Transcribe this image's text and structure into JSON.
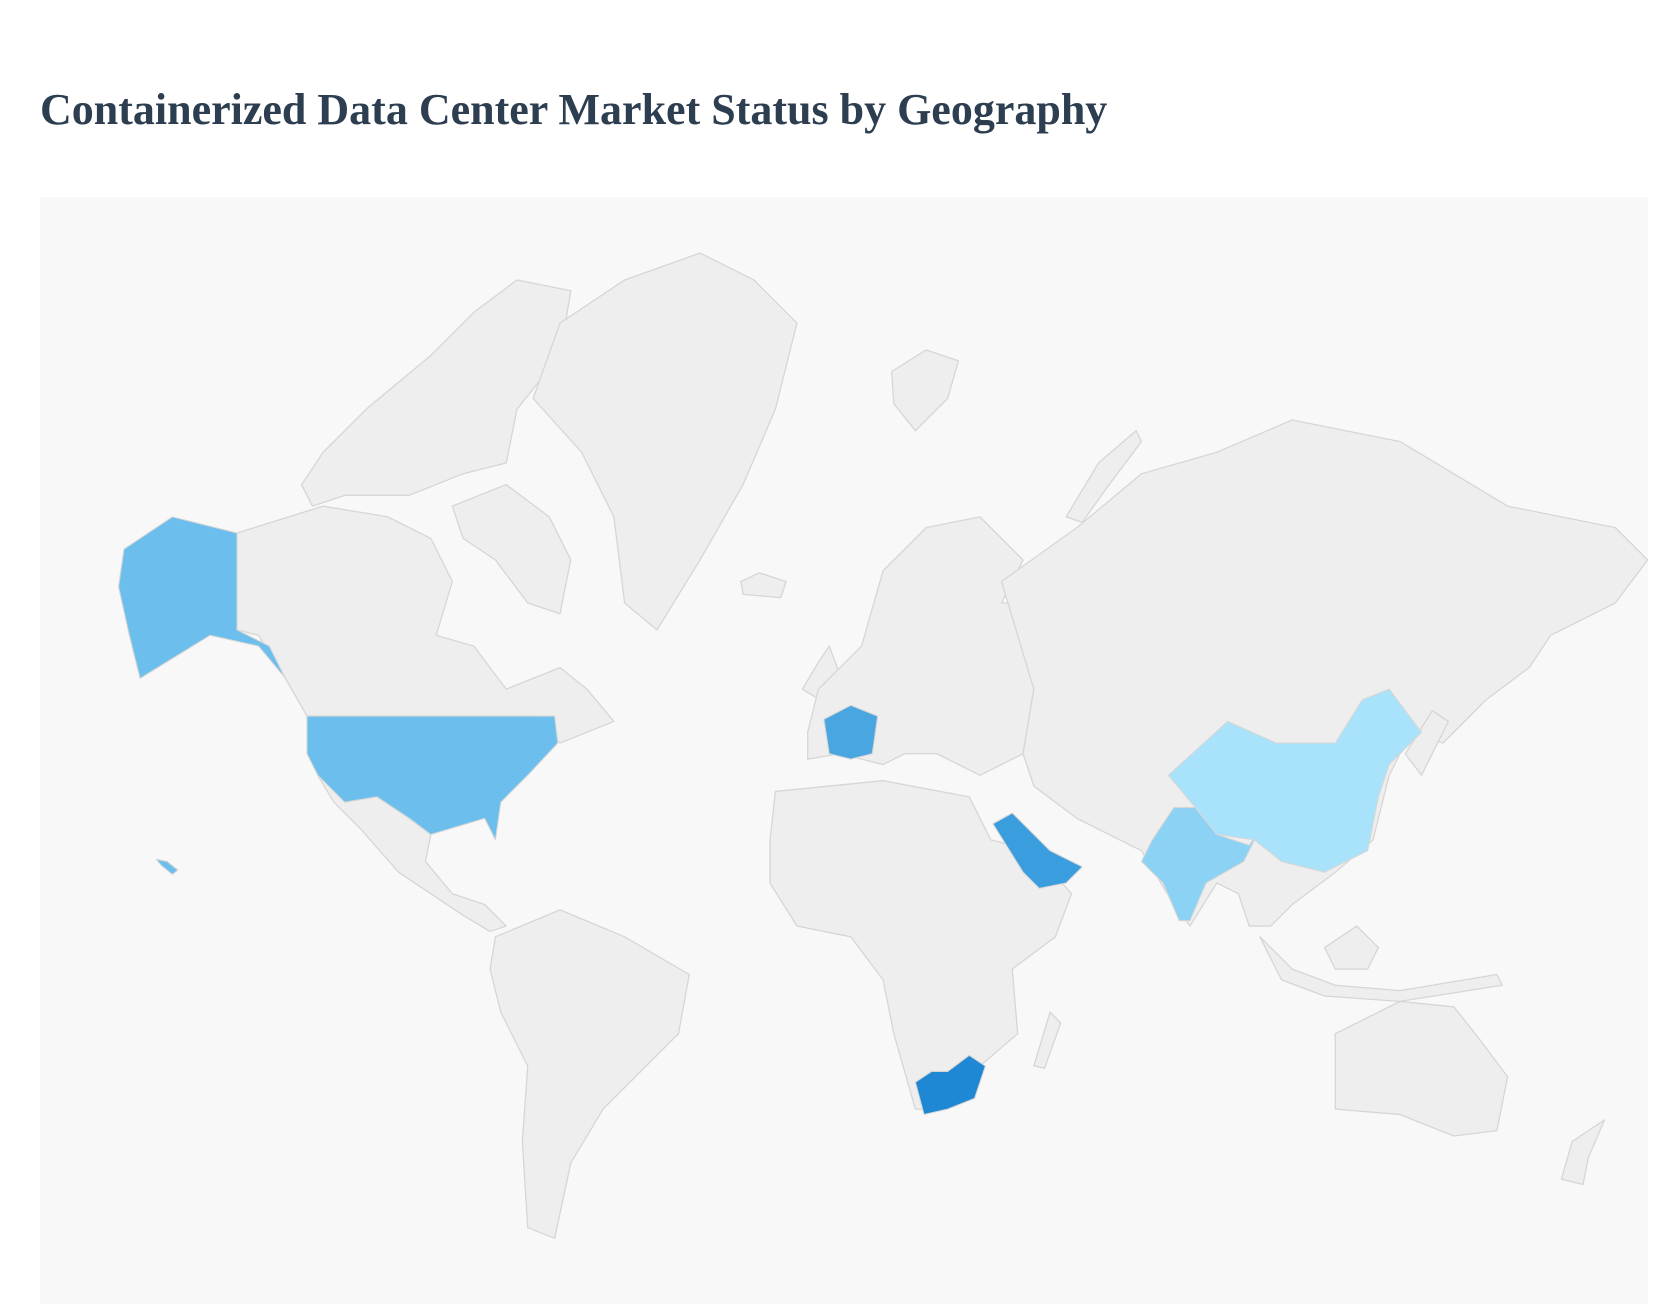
{
  "title": "Containerized Data Center Market Status by Geography",
  "map": {
    "background_color": "#f8f8f8",
    "default_land_color": "#eeeeee",
    "border_color": "#d6d6d6",
    "highlighted": [
      {
        "country": "United States",
        "color": "#6cbfec"
      },
      {
        "country": "France",
        "color": "#4aa6e1"
      },
      {
        "country": "Saudi Arabia",
        "color": "#3a9ddd"
      },
      {
        "country": "South Africa",
        "color": "#1e88d4"
      },
      {
        "country": "India",
        "color": "#8bd2f5"
      },
      {
        "country": "China",
        "color": "#a8e3fb"
      }
    ]
  }
}
